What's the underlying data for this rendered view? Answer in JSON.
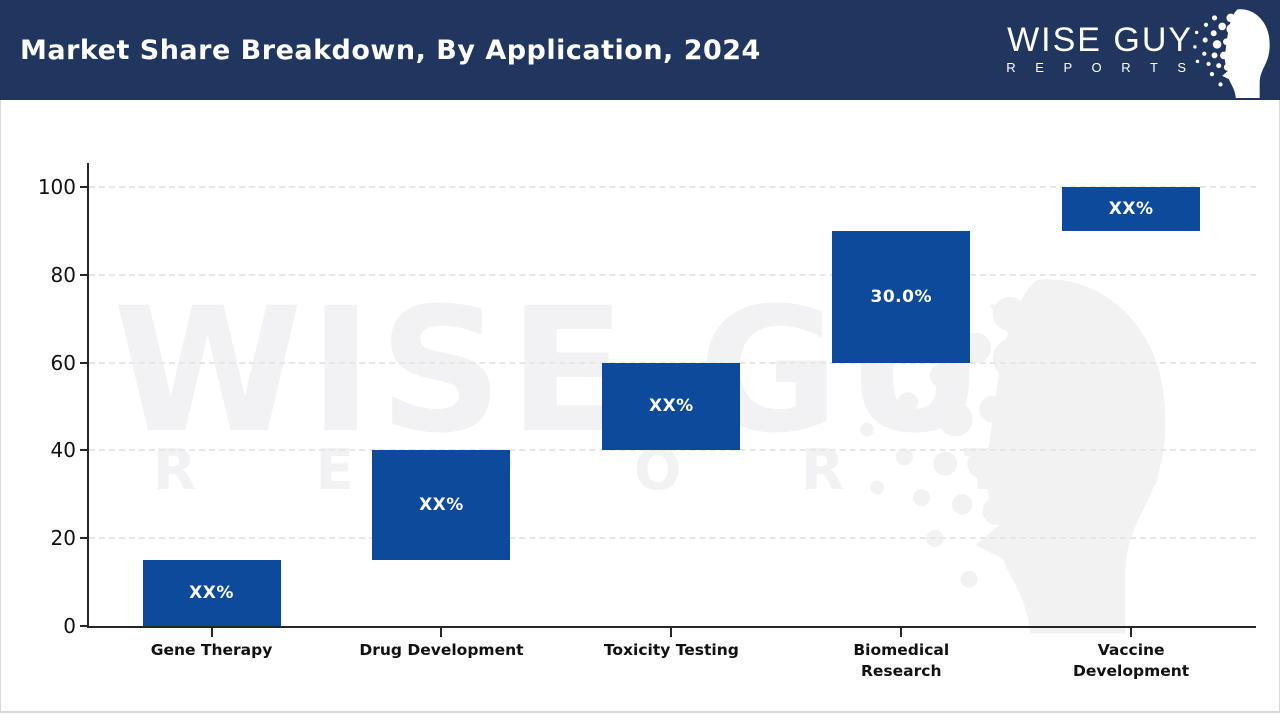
{
  "header": {
    "title": "Market Share Breakdown, By Application, 2024",
    "logo_main": "WISE GUY",
    "logo_sub": "R E P O R T S",
    "bg_color": "#21365F"
  },
  "watermark": {
    "line1": "WISE GUY",
    "line2": "REPORTS"
  },
  "chart_data": {
    "type": "bar",
    "subtype": "waterfall-floating-bars",
    "categories": [
      "Gene Therapy",
      "Drug Development",
      "Toxicity Testing",
      "Biomedical\nResearch",
      "Vaccine\nDevelopment"
    ],
    "segments": [
      {
        "category": "Gene Therapy",
        "start": 0,
        "end": 15,
        "label": "XX%"
      },
      {
        "category": "Drug Development",
        "start": 15,
        "end": 40,
        "label": "XX%"
      },
      {
        "category": "Toxicity Testing",
        "start": 40,
        "end": 60,
        "label": "XX%"
      },
      {
        "category": "Biomedical Research",
        "start": 60,
        "end": 90,
        "label": "30.0%"
      },
      {
        "category": "Vaccine Development",
        "start": 90,
        "end": 100,
        "label": "XX%"
      }
    ],
    "yticks": [
      0,
      20,
      40,
      60,
      80,
      100
    ],
    "ylim": [
      0,
      105
    ],
    "grid": "horizontal-dashed",
    "bar_color": "#0d4a9c",
    "bar_label_color": "#ffffff",
    "title": "Market Share Breakdown, By Application, 2024",
    "xlabel": "",
    "ylabel": ""
  }
}
